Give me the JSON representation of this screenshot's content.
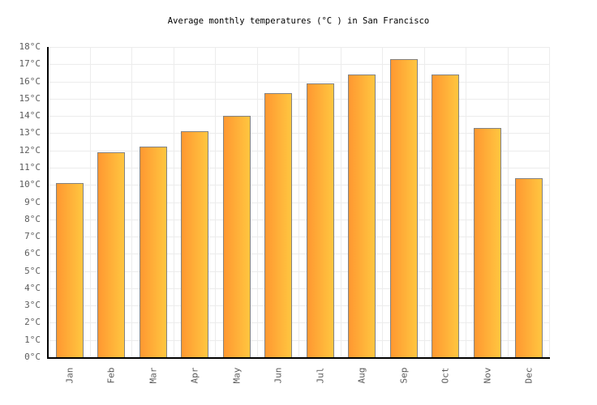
{
  "chart_data": {
    "type": "bar",
    "title": "Average monthly temperatures (°C ) in San Francisco",
    "categories": [
      "Jan",
      "Feb",
      "Mar",
      "Apr",
      "May",
      "Jun",
      "Jul",
      "Aug",
      "Sep",
      "Oct",
      "Nov",
      "Dec"
    ],
    "values": [
      10.1,
      11.9,
      12.2,
      13.1,
      14.0,
      15.3,
      15.9,
      16.4,
      17.3,
      16.4,
      13.3,
      10.4
    ],
    "xlabel": "",
    "ylabel": "",
    "ylim": [
      0,
      18
    ],
    "ytick_step": 1,
    "ytick_suffix": "°C",
    "grid": "on",
    "legend": "none",
    "colors": {
      "title": "#000000",
      "axis_line": "#000000",
      "grid_line": "#ececec",
      "tick_label": "#5c5c5c",
      "bar_gradient_start": "#ff9831",
      "bar_gradient_end": "#ffc640",
      "bar_border": "#828282",
      "background": "#ffffff"
    }
  }
}
